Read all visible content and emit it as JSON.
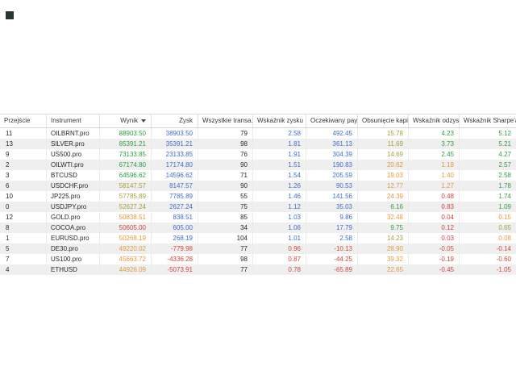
{
  "window": {
    "background": "#ffffff"
  },
  "corner_marker": {
    "color": "#26352f"
  },
  "colors": {
    "green": "#2e9e44",
    "olive": "#a2a338",
    "orange": "#e39a3b",
    "red": "#d0463b",
    "blue": "#3e6cd1",
    "text": "#28282a",
    "header_text": "#3a3a3c"
  },
  "table": {
    "sort": {
      "column": "result",
      "direction": "desc"
    },
    "columns": [
      {
        "key": "pass",
        "label": "Przejście"
      },
      {
        "key": "instrument",
        "label": "Instrument"
      },
      {
        "key": "result",
        "label": "Wynik"
      },
      {
        "key": "profit",
        "label": "Zysk"
      },
      {
        "key": "total_trades",
        "label": "Wszystkie transa..."
      },
      {
        "key": "profit_factor",
        "label": "Wskaźnik zysku"
      },
      {
        "key": "expected_payoff",
        "label": "Oczekiwany pay..."
      },
      {
        "key": "drawdown",
        "label": "Obsunięcie kapit..."
      },
      {
        "key": "recovery_factor",
        "label": "Wskaźnik odzysk..."
      },
      {
        "key": "sharpe_ratio",
        "label": "Wskaźnik Sharpe'a"
      }
    ],
    "rows": [
      {
        "cells": [
          [
            "11",
            "text"
          ],
          [
            "OILBRNT.pro",
            "text"
          ],
          [
            "88903.50",
            "green"
          ],
          [
            "38903.50",
            "blue"
          ],
          [
            "79",
            "text"
          ],
          [
            "2.58",
            "blue"
          ],
          [
            "492.45",
            "blue"
          ],
          [
            "15.78",
            "olive"
          ],
          [
            "4.23",
            "green"
          ],
          [
            "5.12",
            "green"
          ]
        ]
      },
      {
        "cells": [
          [
            "13",
            "text"
          ],
          [
            "SILVER.pro",
            "text"
          ],
          [
            "85391.21",
            "green"
          ],
          [
            "35391.21",
            "blue"
          ],
          [
            "98",
            "text"
          ],
          [
            "1.81",
            "blue"
          ],
          [
            "361.13",
            "blue"
          ],
          [
            "11.69",
            "olive"
          ],
          [
            "3.73",
            "green"
          ],
          [
            "5.21",
            "green"
          ]
        ]
      },
      {
        "cells": [
          [
            "9",
            "text"
          ],
          [
            "US500.pro",
            "text"
          ],
          [
            "73133.85",
            "green"
          ],
          [
            "23133.85",
            "blue"
          ],
          [
            "76",
            "text"
          ],
          [
            "1.91",
            "blue"
          ],
          [
            "304.39",
            "blue"
          ],
          [
            "14.69",
            "olive"
          ],
          [
            "2.45",
            "green"
          ],
          [
            "4.27",
            "green"
          ]
        ]
      },
      {
        "cells": [
          [
            "2",
            "text"
          ],
          [
            "OILWTI.pro",
            "text"
          ],
          [
            "67174.80",
            "green"
          ],
          [
            "17174.80",
            "blue"
          ],
          [
            "90",
            "text"
          ],
          [
            "1.51",
            "blue"
          ],
          [
            "190.83",
            "blue"
          ],
          [
            "20.62",
            "orange"
          ],
          [
            "1.18",
            "orange"
          ],
          [
            "2.57",
            "green"
          ]
        ]
      },
      {
        "cells": [
          [
            "3",
            "text"
          ],
          [
            "BTCUSD",
            "text"
          ],
          [
            "64596.62",
            "green"
          ],
          [
            "14596.62",
            "blue"
          ],
          [
            "71",
            "text"
          ],
          [
            "1.54",
            "blue"
          ],
          [
            "205.59",
            "blue"
          ],
          [
            "19.03",
            "orange"
          ],
          [
            "1.40",
            "orange"
          ],
          [
            "2.58",
            "green"
          ]
        ]
      },
      {
        "cells": [
          [
            "6",
            "text"
          ],
          [
            "USDCHF.pro",
            "text"
          ],
          [
            "58147.57",
            "olive"
          ],
          [
            "8147.57",
            "blue"
          ],
          [
            "90",
            "text"
          ],
          [
            "1.26",
            "blue"
          ],
          [
            "90.53",
            "blue"
          ],
          [
            "12.77",
            "orange"
          ],
          [
            "1.27",
            "orange"
          ],
          [
            "1.78",
            "green"
          ]
        ]
      },
      {
        "cells": [
          [
            "10",
            "text"
          ],
          [
            "JP225.pro",
            "text"
          ],
          [
            "57785.89",
            "olive"
          ],
          [
            "7785.89",
            "blue"
          ],
          [
            "55",
            "text"
          ],
          [
            "1.46",
            "blue"
          ],
          [
            "141.56",
            "blue"
          ],
          [
            "24.39",
            "orange"
          ],
          [
            "0.48",
            "red"
          ],
          [
            "1.74",
            "green"
          ]
        ]
      },
      {
        "cells": [
          [
            "0",
            "text"
          ],
          [
            "USDJPY.pro",
            "text"
          ],
          [
            "52627.24",
            "olive"
          ],
          [
            "2627.24",
            "blue"
          ],
          [
            "75",
            "text"
          ],
          [
            "1.12",
            "blue"
          ],
          [
            "35.03",
            "blue"
          ],
          [
            "6.16",
            "green"
          ],
          [
            "0.83",
            "red"
          ],
          [
            "1.09",
            "green"
          ]
        ]
      },
      {
        "cells": [
          [
            "12",
            "text"
          ],
          [
            "GOLD.pro",
            "text"
          ],
          [
            "50838.51",
            "orange"
          ],
          [
            "838.51",
            "blue"
          ],
          [
            "85",
            "text"
          ],
          [
            "1.03",
            "blue"
          ],
          [
            "9.86",
            "blue"
          ],
          [
            "32.48",
            "orange"
          ],
          [
            "0.04",
            "red"
          ],
          [
            "0.15",
            "orange"
          ]
        ]
      },
      {
        "cells": [
          [
            "8",
            "text"
          ],
          [
            "COCOA.pro",
            "text"
          ],
          [
            "50605.00",
            "red"
          ],
          [
            "605.00",
            "blue"
          ],
          [
            "34",
            "text"
          ],
          [
            "1.06",
            "blue"
          ],
          [
            "17.79",
            "blue"
          ],
          [
            "9.75",
            "green"
          ],
          [
            "0.12",
            "red"
          ],
          [
            "0.65",
            "olive"
          ]
        ]
      },
      {
        "cells": [
          [
            "1",
            "text"
          ],
          [
            "EURUSD.pro",
            "text"
          ],
          [
            "50268.19",
            "orange"
          ],
          [
            "268.19",
            "blue"
          ],
          [
            "104",
            "text"
          ],
          [
            "1.01",
            "blue"
          ],
          [
            "2.58",
            "blue"
          ],
          [
            "14.23",
            "olive"
          ],
          [
            "0.03",
            "red"
          ],
          [
            "0.08",
            "orange"
          ]
        ]
      },
      {
        "cells": [
          [
            "5",
            "text"
          ],
          [
            "DE30.pro",
            "text"
          ],
          [
            "49220.02",
            "orange"
          ],
          [
            "-779.98",
            "red"
          ],
          [
            "77",
            "text"
          ],
          [
            "0.96",
            "red"
          ],
          [
            "-10.13",
            "red"
          ],
          [
            "28.90",
            "orange"
          ],
          [
            "-0.05",
            "red"
          ],
          [
            "-0.14",
            "red"
          ]
        ]
      },
      {
        "cells": [
          [
            "7",
            "text"
          ],
          [
            "US100.pro",
            "text"
          ],
          [
            "45663.72",
            "orange"
          ],
          [
            "-4336.28",
            "red"
          ],
          [
            "98",
            "text"
          ],
          [
            "0.87",
            "red"
          ],
          [
            "-44.25",
            "red"
          ],
          [
            "39.32",
            "orange"
          ],
          [
            "-0.19",
            "red"
          ],
          [
            "-0.60",
            "red"
          ]
        ]
      },
      {
        "cells": [
          [
            "4",
            "text"
          ],
          [
            "ETHUSD",
            "text"
          ],
          [
            "44926.09",
            "orange"
          ],
          [
            "-5073.91",
            "red"
          ],
          [
            "77",
            "text"
          ],
          [
            "0.78",
            "red"
          ],
          [
            "-65.89",
            "red"
          ],
          [
            "22.65",
            "orange"
          ],
          [
            "-0.45",
            "red"
          ],
          [
            "-1.05",
            "red"
          ]
        ]
      }
    ]
  }
}
